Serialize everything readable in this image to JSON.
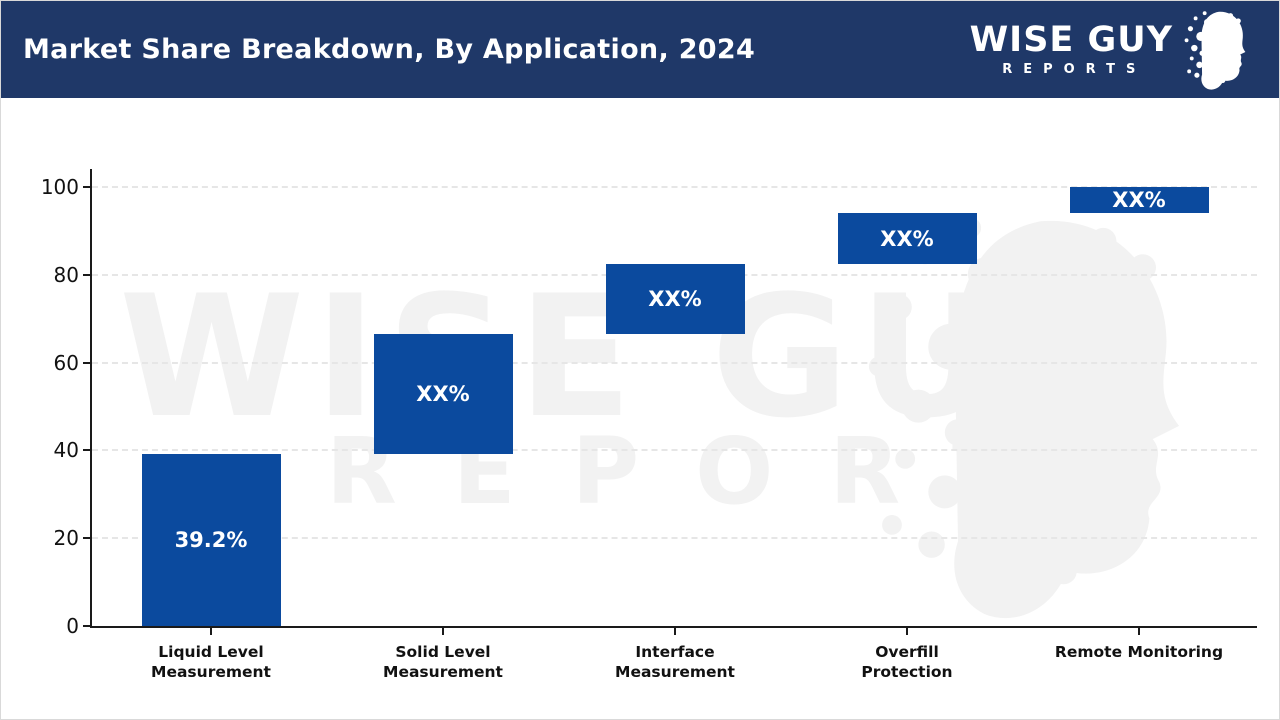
{
  "header": {
    "title": "Market Share Breakdown, By Application, 2024",
    "bg_color": "#1f3868",
    "text_color": "#ffffff",
    "logo": {
      "line1": "WISE GUY",
      "line2": "REPORTS"
    }
  },
  "watermark": {
    "line1": "WISE GUY",
    "line2": "REPORTS",
    "color": "#f2f2f2"
  },
  "chart_data": {
    "type": "bar",
    "subtype": "waterfall",
    "title": "Market Share Breakdown, By Application, 2024",
    "xlabel": "",
    "ylabel": "",
    "ylim": [
      0,
      100
    ],
    "yticks": [
      0,
      20,
      40,
      60,
      80,
      100
    ],
    "grid": "horizontal-dashed",
    "legend": "none",
    "bar_color": "#0b4a9e",
    "bar_label_color": "#ffffff",
    "axis_color": "#1a1a1a",
    "grid_color": "#e6e6e6",
    "categories": [
      "Liquid Level\nMeasurement",
      "Solid Level\nMeasurement",
      "Interface\nMeasurement",
      "Overfill\nProtection",
      "Remote Monitoring"
    ],
    "bars": [
      {
        "category": "Liquid Level Measurement",
        "start": 0,
        "end": 39.2,
        "label": "39.2%"
      },
      {
        "category": "Solid Level Measurement",
        "start": 39.2,
        "end": 66.6,
        "label": "XX%"
      },
      {
        "category": "Interface Measurement",
        "start": 66.6,
        "end": 82.5,
        "label": "XX%"
      },
      {
        "category": "Overfill Protection",
        "start": 82.5,
        "end": 94.0,
        "label": "XX%"
      },
      {
        "category": "Remote Monitoring",
        "start": 94.0,
        "end": 100,
        "label": "XX%"
      }
    ]
  }
}
